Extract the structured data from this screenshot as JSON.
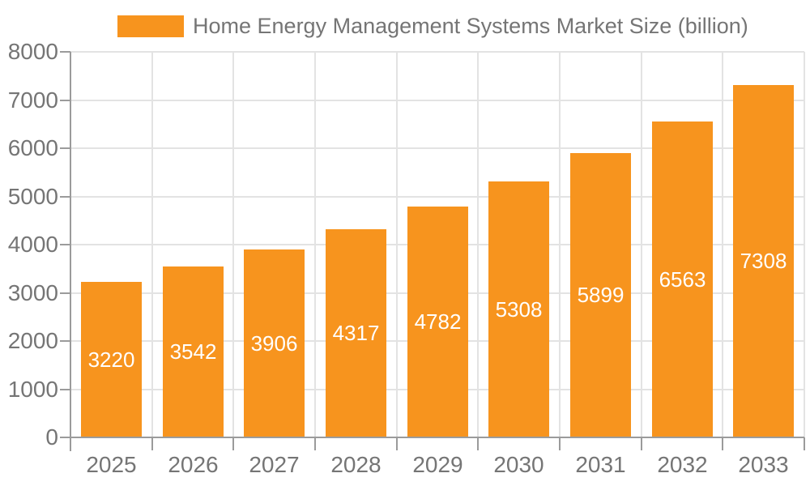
{
  "chart_data": {
    "type": "bar",
    "title": "Home Energy Management Systems Market Size (billion)",
    "categories": [
      "2025",
      "2026",
      "2027",
      "2028",
      "2029",
      "2030",
      "2031",
      "2032",
      "2033"
    ],
    "values": [
      3220,
      3542,
      3906,
      4317,
      4782,
      5308,
      5899,
      6563,
      7308
    ],
    "xlabel": "",
    "ylabel": "",
    "ylim": [
      0,
      8000
    ],
    "y_ticks": [
      0,
      1000,
      2000,
      3000,
      4000,
      5000,
      6000,
      7000,
      8000
    ],
    "grid": true,
    "legend_position": "top",
    "bar_label_position": "center-inside",
    "colors": {
      "bar": "#F7941E",
      "bar_label": "#FFFFFF",
      "axis_text": "#757575",
      "axis_line": "#9B9B9B",
      "grid": "#E3E3E3",
      "background": "#FFFFFF"
    }
  }
}
